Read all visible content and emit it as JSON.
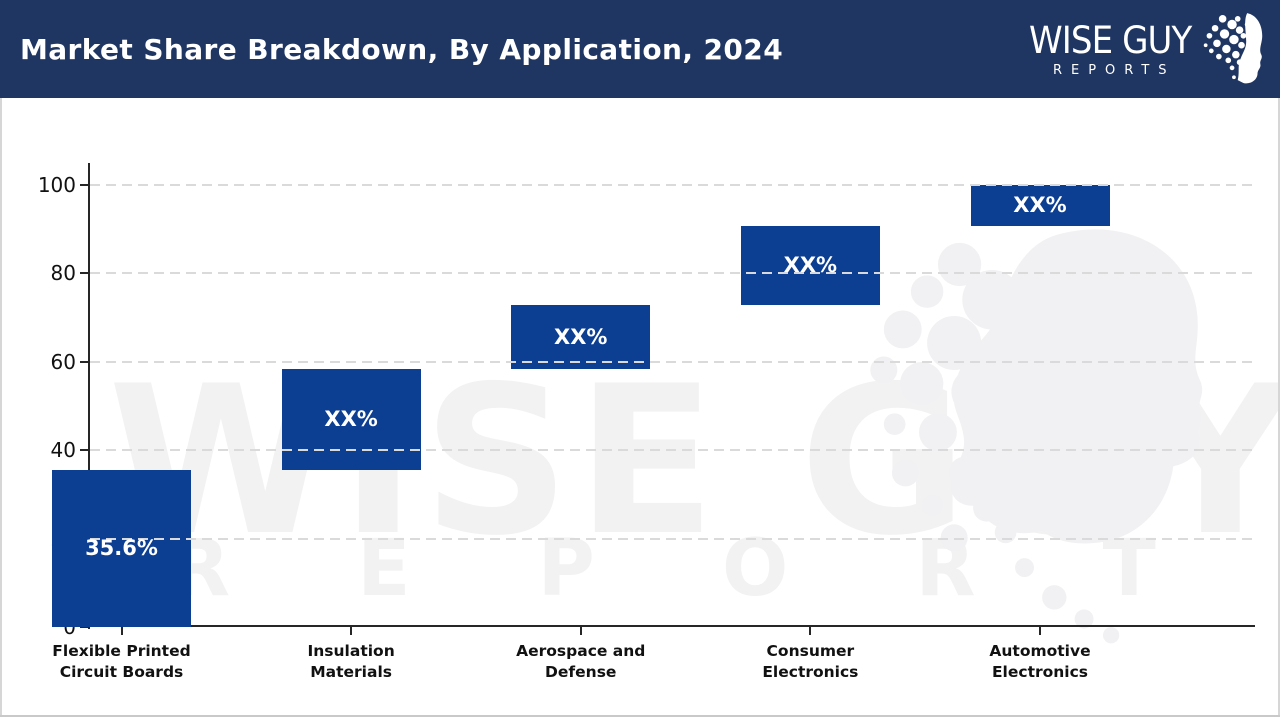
{
  "header": {
    "title": "Market Share Breakdown, By Application, 2024",
    "bg_color": "#203662",
    "logo": {
      "name": "Wise Guy Reports",
      "line1": "WISE GUY",
      "line2": "REPORTS"
    }
  },
  "watermark": {
    "line1": "WISE GUY",
    "line2": "R E P O R T S"
  },
  "chart_data": {
    "type": "bar",
    "subtype": "waterfall-stacked-percent",
    "title": "Market Share Breakdown, By Application, 2024",
    "categories": [
      "Flexible Printed Circuit Boards",
      "Insulation Materials",
      "Aerospace and Defense",
      "Consumer Electronics",
      "Automotive Electronics"
    ],
    "category_label_lines": [
      [
        "Flexible Printed",
        "Circuit Boards"
      ],
      [
        "Insulation",
        "Materials"
      ],
      [
        "Aerospace and",
        "Defense"
      ],
      [
        "Consumer",
        "Electronics"
      ],
      [
        "Automotive",
        "Electronics"
      ]
    ],
    "segments": [
      {
        "start": 0,
        "end": 35.6,
        "label": "35.6%"
      },
      {
        "start": 35.6,
        "end": 58.4,
        "label": "XX%"
      },
      {
        "start": 58.4,
        "end": 72.9,
        "label": "XX%"
      },
      {
        "start": 72.9,
        "end": 90.8,
        "label": "XX%"
      },
      {
        "start": 90.8,
        "end": 100,
        "label": "XX%"
      }
    ],
    "ylim": [
      0,
      100
    ],
    "yticks": [
      0,
      20,
      40,
      60,
      80,
      100
    ],
    "grid": {
      "axis": "y",
      "style": "dashed",
      "color": "#dadada",
      "drawn_over_bars": true
    },
    "legend": "none",
    "bar_color": "#0c3e92",
    "bar_label_color": "#ffffff",
    "axis_color": "#262626"
  }
}
